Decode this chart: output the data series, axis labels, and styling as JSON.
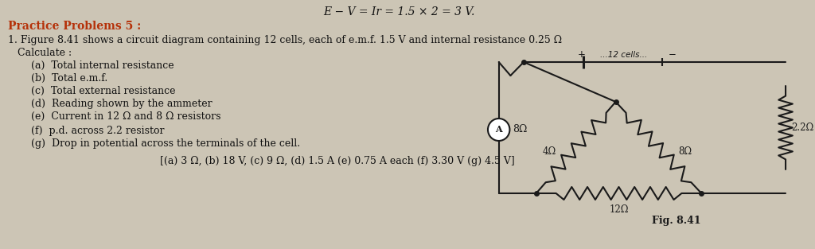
{
  "bg_color": "#ccc5b5",
  "top_text": "E − V = Ir = 1.5 × 2 = 3 V.",
  "heading": "Practice Problems 5 :",
  "heading_color": "#b5320a",
  "problem_line1": "1. Figure 8.41 shows a circuit diagram containing 12 cells, each of e.m.f. 1.5 V and internal resistance 0.25 Ω",
  "problem_line2": "Calculate :",
  "sub_questions": [
    "(a)  Total internal resistance",
    "(b)  Total e.m.f.",
    "(c)  Total external resistance",
    "(d)  Reading shown by the ammeter",
    "(e)  Current in 12 Ω and 8 Ω resistors",
    "(f)  p.d. across 2.2 resistor",
    "(g)  Drop in potential across the terminals of the cell."
  ],
  "answer_line": "[(a) 3 Ω, (b) 18 V, (c) 9 Ω, (d) 1.5 A (e) 0.75 A each (f) 3.30 V (g) 4.5 V]",
  "fig_label": "Fig. 8.41",
  "text_color": "#111111"
}
